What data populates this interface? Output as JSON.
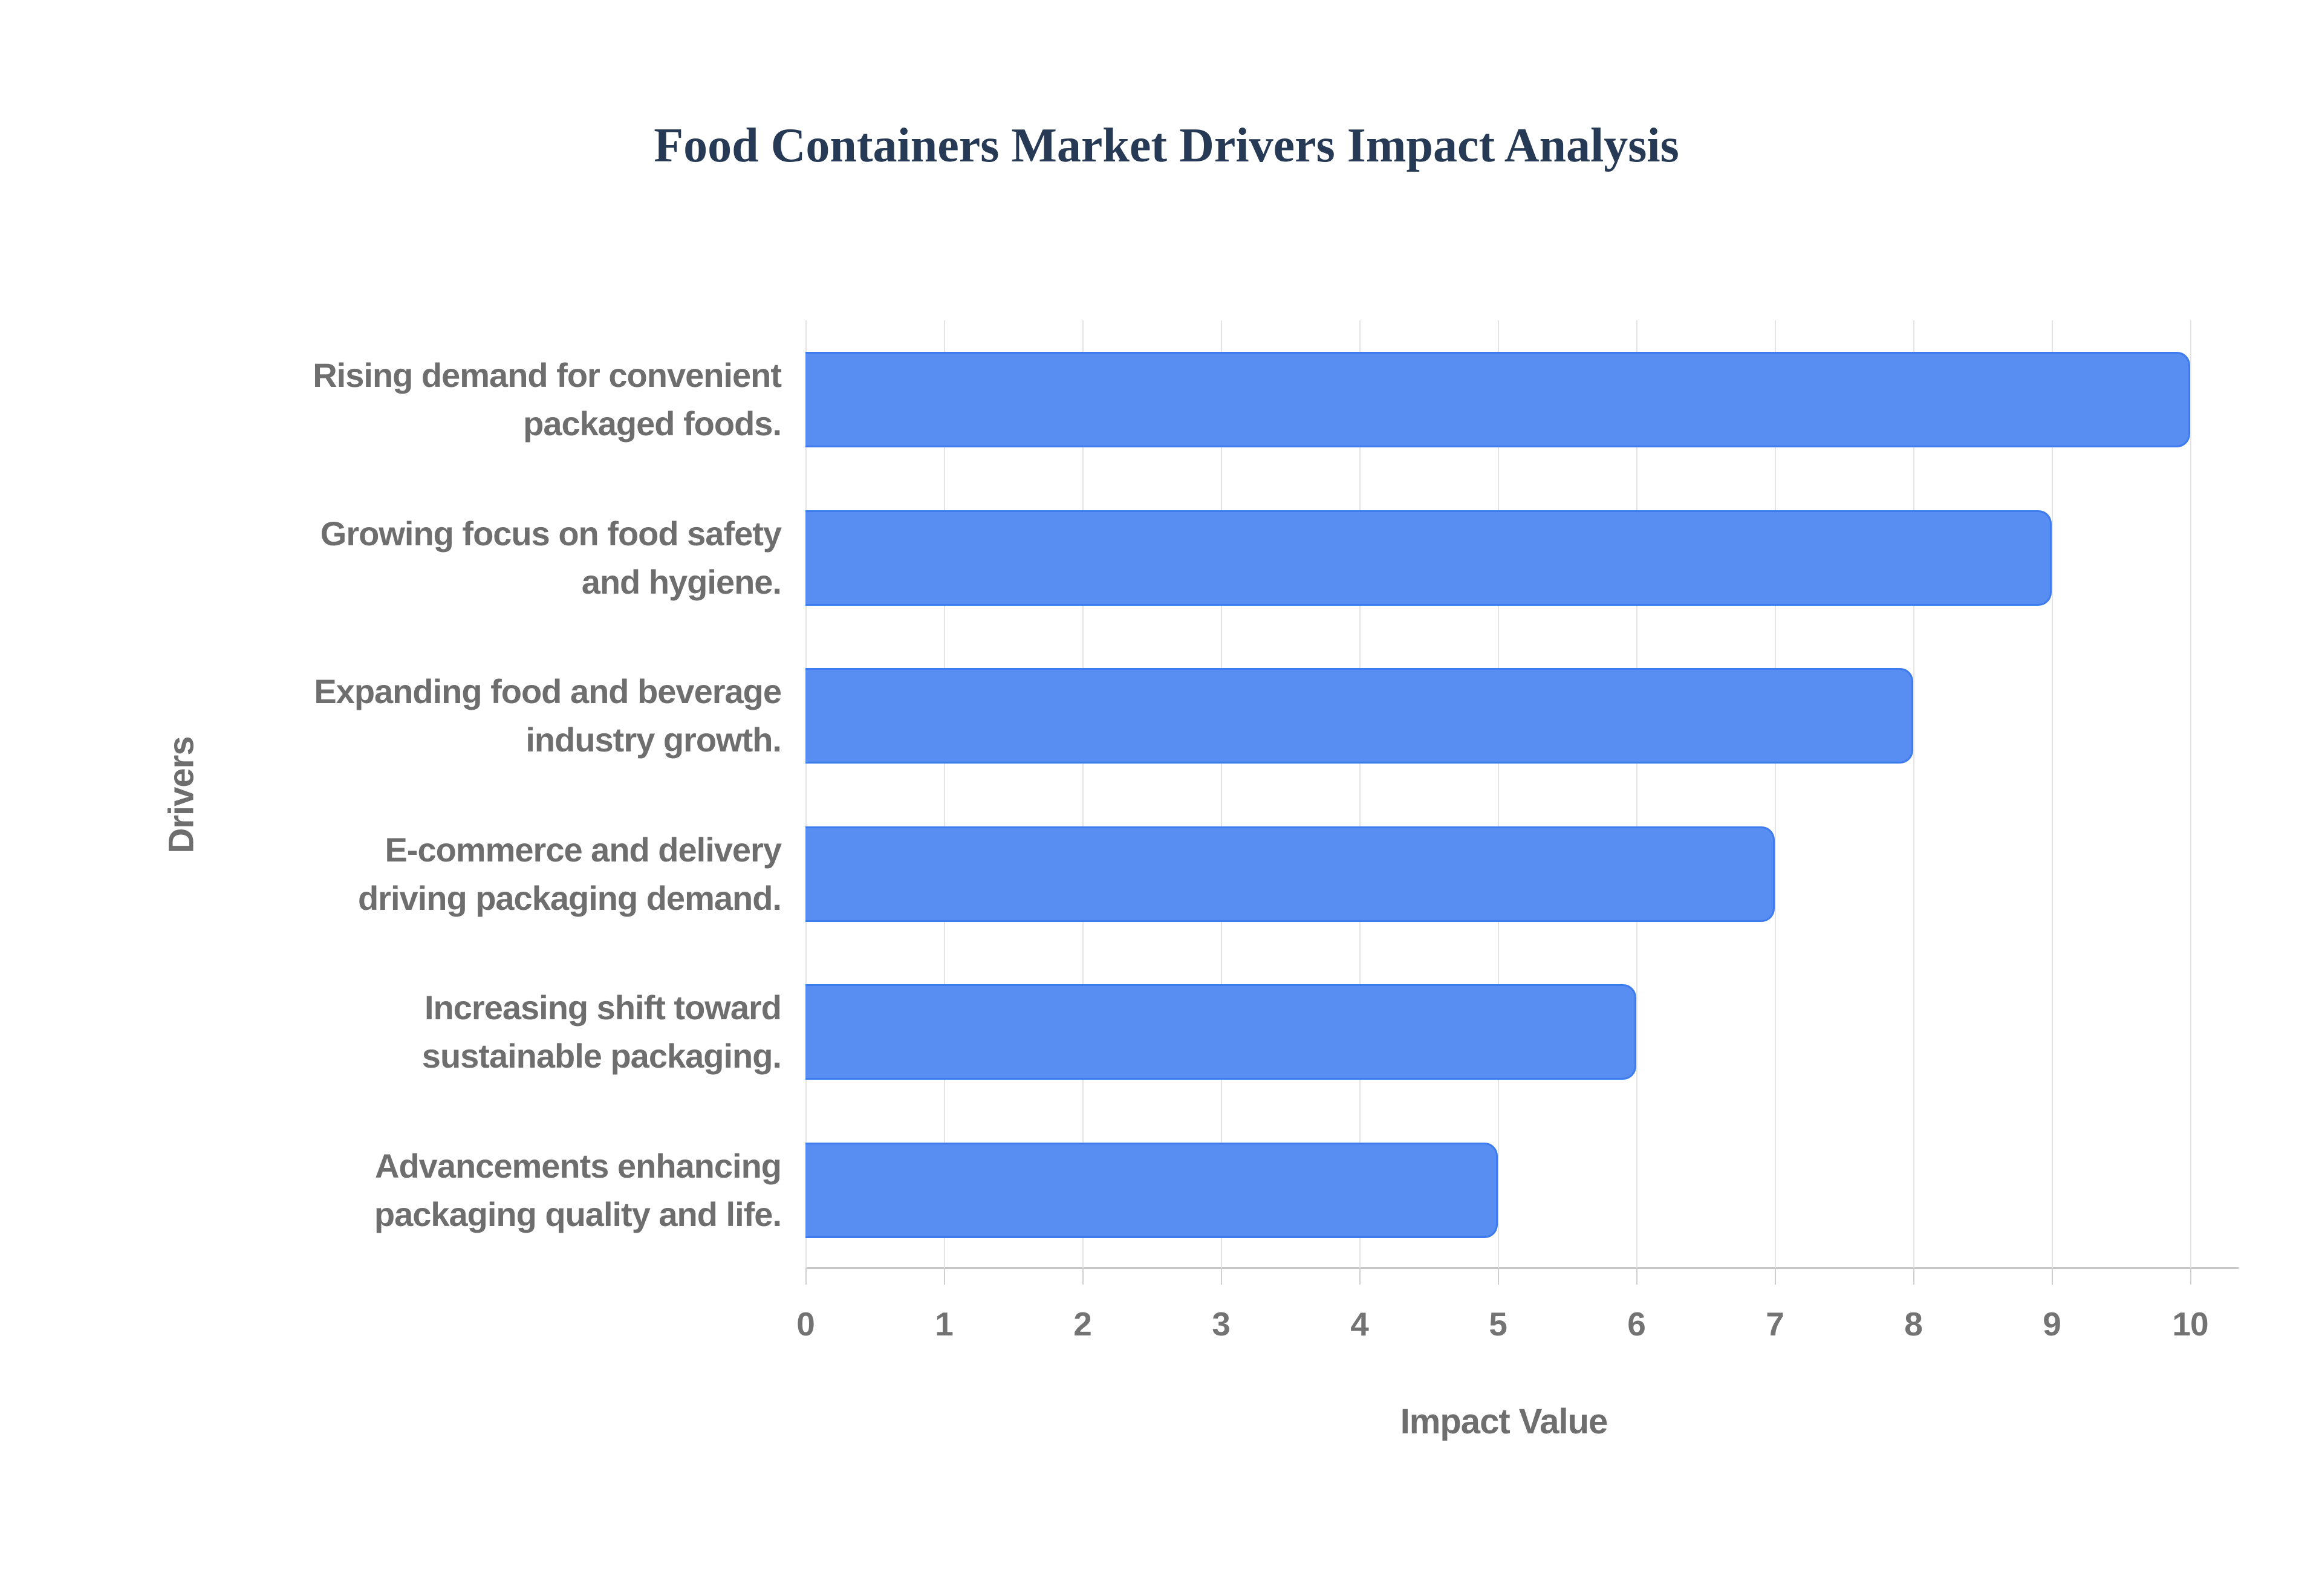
{
  "title": "Food Containers Market Drivers Impact Analysis",
  "chart_data": {
    "type": "bar",
    "orientation": "horizontal",
    "title": "Food Containers Market Drivers Impact Analysis",
    "categories": [
      "Rising demand for convenient\npackaged foods.",
      "Growing focus on food safety\nand hygiene.",
      "Expanding food and beverage\nindustry growth.",
      "E-commerce and delivery\ndriving packaging demand.",
      "Increasing shift toward\nsustainable packaging.",
      "Advancements enhancing\npackaging quality and life."
    ],
    "values": [
      10,
      9,
      8,
      7,
      6,
      5
    ],
    "xlabel": "Impact Value",
    "ylabel": "Drivers",
    "xlim": [
      0,
      10
    ],
    "xticks": [
      0,
      1,
      2,
      3,
      4,
      5,
      6,
      7,
      8,
      9,
      10
    ],
    "grid": "vertical-only",
    "legend": "none",
    "bar_color": "#588ef2",
    "bar_border_color": "#3e7bee"
  },
  "colors": {
    "background": "#ffffff",
    "title_text": "#273a55",
    "axis_text": "#6e6e6e",
    "tick_text": "#737373",
    "gridline": "#e4e4e4",
    "axis_line": "#c6c6c6"
  }
}
